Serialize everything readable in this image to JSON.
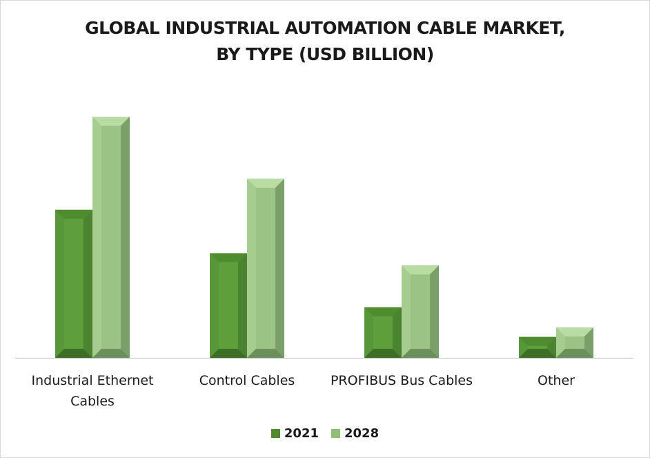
{
  "chart_data": {
    "type": "bar",
    "title": "GLOBAL INDUSTRIAL AUTOMATION CABLE  MARKET,",
    "subtitle": "BY TYPE (USD BILLION)",
    "categories": [
      [
        "Industrial Ethernet",
        "Cables"
      ],
      [
        "Control Cables"
      ],
      [
        "PROFIBUS Bus Cables"
      ],
      [
        "Other"
      ]
    ],
    "series": [
      {
        "name": "2021",
        "values": [
          20.5,
          14.5,
          7.0,
          2.9
        ],
        "color": "#5a9a38"
      },
      {
        "name": "2028",
        "values": [
          33.4,
          24.8,
          12.8,
          4.2
        ],
        "color": "#8fbf72"
      }
    ],
    "ylim": [
      0,
      40
    ],
    "grid": false,
    "legend_position": "bottom"
  }
}
